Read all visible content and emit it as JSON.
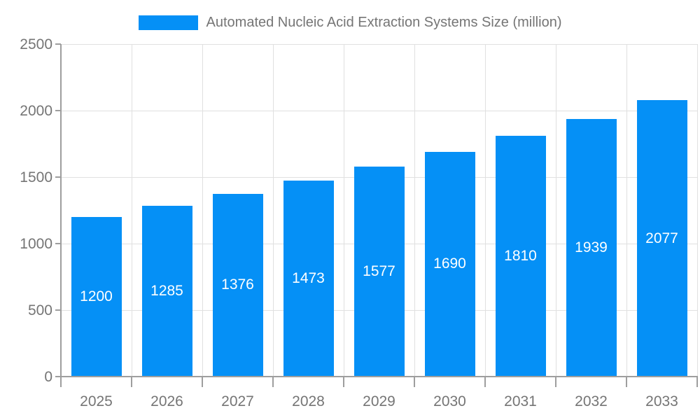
{
  "legend": {
    "label": "Automated Nucleic Acid Extraction Systems Size (million)",
    "swatch_color": "#0590f6"
  },
  "chart_data": {
    "type": "bar",
    "title": "Automated Nucleic Acid Extraction Systems Size (million)",
    "categories": [
      "2025",
      "2026",
      "2027",
      "2028",
      "2029",
      "2030",
      "2031",
      "2032",
      "2033"
    ],
    "values": [
      1200,
      1285,
      1376,
      1473,
      1577,
      1690,
      1810,
      1939,
      2077
    ],
    "data_labels": [
      "1200",
      "1285",
      "1376",
      "1473",
      "1577",
      "1690",
      "1810",
      "1939",
      "2077"
    ],
    "xlabel": "",
    "ylabel": "",
    "ylim": [
      0,
      2500
    ],
    "yticks": [
      0,
      500,
      1000,
      1500,
      2000,
      2500
    ],
    "ytick_labels": [
      "0",
      "500",
      "1000",
      "1500",
      "2000",
      "2500"
    ],
    "grid": true,
    "legend_position": "top",
    "bar_color": "#0590f6",
    "value_label_color": "#ffffff",
    "axis_text_color": "#757575",
    "gridline_color": "#e0e0e0",
    "axis_line_color": "#9e9e9e"
  }
}
